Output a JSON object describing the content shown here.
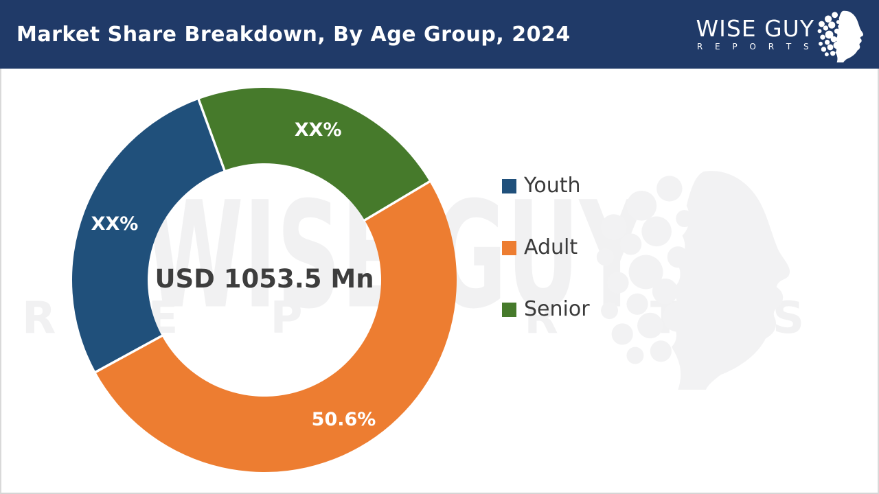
{
  "header": {
    "title": "Market Share Breakdown, By Age Group, 2024",
    "bg_color": "#203a68",
    "logo": {
      "name": "WISE GUY",
      "subtitle": "R E P O R T S"
    }
  },
  "watermark": {
    "line1": "WISE GUY",
    "line2": "R E P O R T S"
  },
  "chart_data": {
    "type": "donut",
    "title": "Market Share Breakdown, By Age Group, 2024",
    "center_label": "USD 1053.5 Mn",
    "start_angle_deg_cw_from_top": -20,
    "clockwise": true,
    "outer_radius_px": 280,
    "inner_radius_px": 170,
    "segments": [
      {
        "name": "Senior",
        "value_pct": 22.0,
        "display_label": "XX%",
        "color": "#467a2b"
      },
      {
        "name": "Adult",
        "value_pct": 50.6,
        "display_label": "50.6%",
        "color": "#ed7d31"
      },
      {
        "name": "Youth",
        "value_pct": 27.4,
        "display_label": "XX%",
        "color": "#20507b"
      }
    ],
    "legend": [
      {
        "label": "Youth",
        "color": "#20507b"
      },
      {
        "label": "Adult",
        "color": "#ed7d31"
      },
      {
        "label": "Senior",
        "color": "#467a2b"
      }
    ],
    "legend_position": "right",
    "label_color": "#ffffff",
    "separator_color": "#ffffff"
  }
}
